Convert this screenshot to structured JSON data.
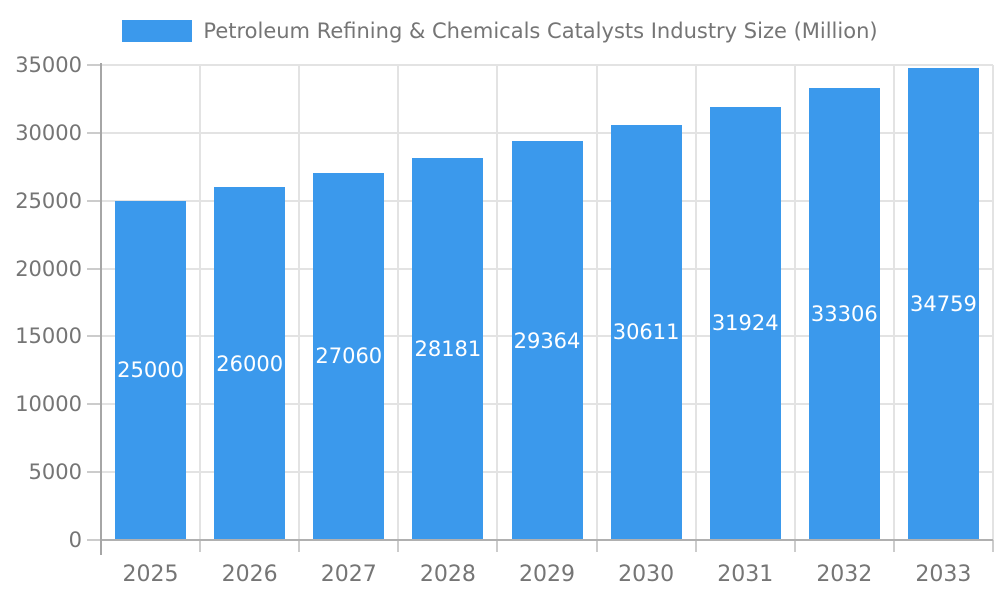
{
  "chart_data": {
    "type": "bar",
    "title": "Petroleum Refining & Chemicals Catalysts Industry Size (Million)",
    "legend": {
      "position": "top",
      "series": [
        "Petroleum Refining & Chemicals Catalysts Industry Size (Million)"
      ]
    },
    "categories": [
      "2025",
      "2026",
      "2027",
      "2028",
      "2029",
      "2030",
      "2031",
      "2032",
      "2033"
    ],
    "values": [
      25000,
      26000,
      27060,
      28181,
      29364,
      30611,
      31924,
      33306,
      34759
    ],
    "xlabel": "",
    "ylabel": "",
    "ylim": [
      0,
      35000
    ],
    "yticks": [
      0,
      5000,
      10000,
      15000,
      20000,
      25000,
      30000,
      35000
    ],
    "grid": true,
    "bar_value_labels": "inside-center",
    "colors": {
      "bar": "#3b99ec",
      "bar_label": "#ffffff",
      "axis_text": "#757575",
      "grid": "#e3e3e3",
      "tick": "#cccccc",
      "axis_line": "#a6a6a6",
      "baseline": "#b0b0b0",
      "background": "#ffffff"
    }
  }
}
